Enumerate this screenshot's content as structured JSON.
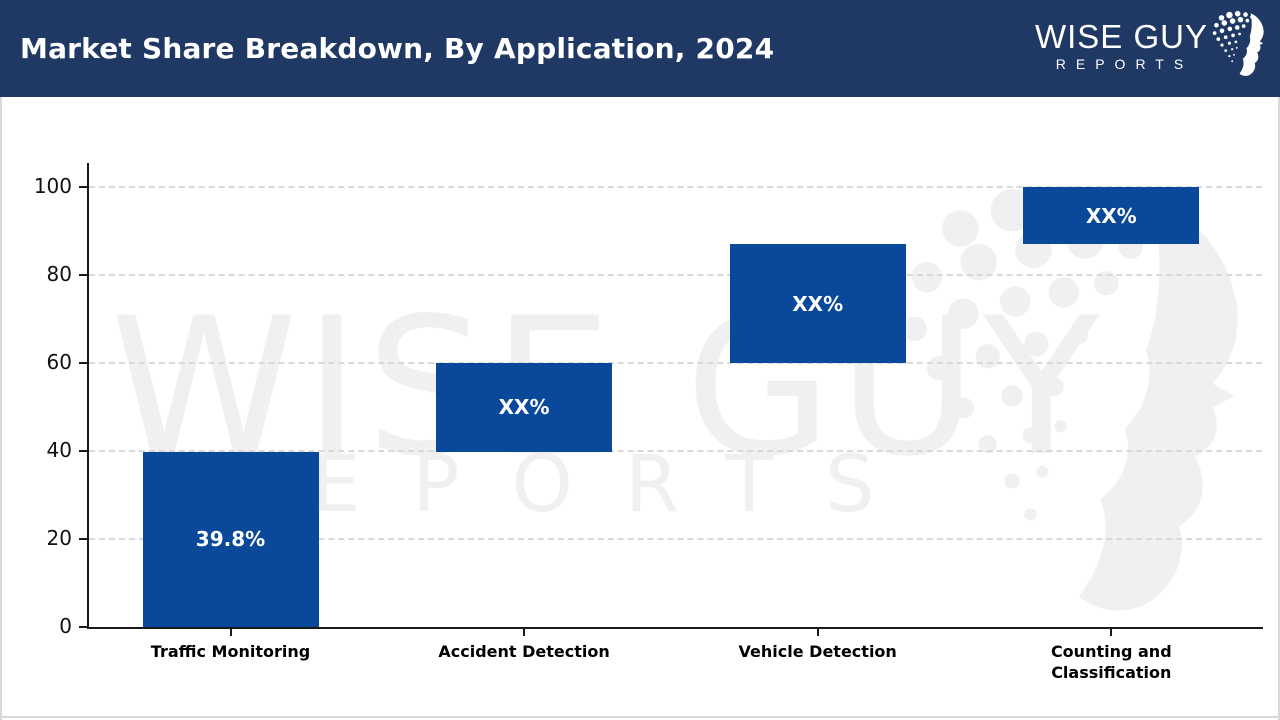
{
  "header": {
    "title": "Market Share Breakdown, By Application, 2024",
    "logo": {
      "wordmark": "WISE GUY",
      "subtext": "REPORTS",
      "face_icon": "wiseguy-face-profile-dots"
    }
  },
  "watermark": {
    "wordmark": "WISE GUY",
    "subtext": "REPORTS",
    "face_icon": "wiseguy-face-profile-dots"
  },
  "colors": {
    "header_bg": "#203864",
    "bar": "#0a4899",
    "grid": "#d9d9d9",
    "axis": "#1a1a1a",
    "title_text": "#ffffff",
    "bar_label_text": "#ffffff",
    "tick_text": "#111111",
    "watermark": "#f0f0f3",
    "page_border": "#d9d9d9"
  },
  "chart_data": {
    "type": "bar",
    "subtype": "waterfall",
    "title": "Market Share Breakdown, By Application, 2024",
    "categories": [
      "Traffic Monitoring",
      "Accident Detection",
      "Vehicle Detection",
      "Counting and Classification"
    ],
    "series": [
      {
        "name": "Market share (%)",
        "base": [
          0,
          39.8,
          60,
          87
        ],
        "top": [
          39.8,
          60,
          87,
          100
        ]
      }
    ],
    "bar_labels": [
      "39.8%",
      "XX%",
      "XX%",
      "XX%"
    ],
    "xlabel": "",
    "ylabel": "",
    "ylim": [
      0,
      100
    ],
    "yticks": [
      0,
      20,
      40,
      60,
      80,
      100
    ],
    "grid": "horizontal-dashed",
    "legend": "none"
  }
}
